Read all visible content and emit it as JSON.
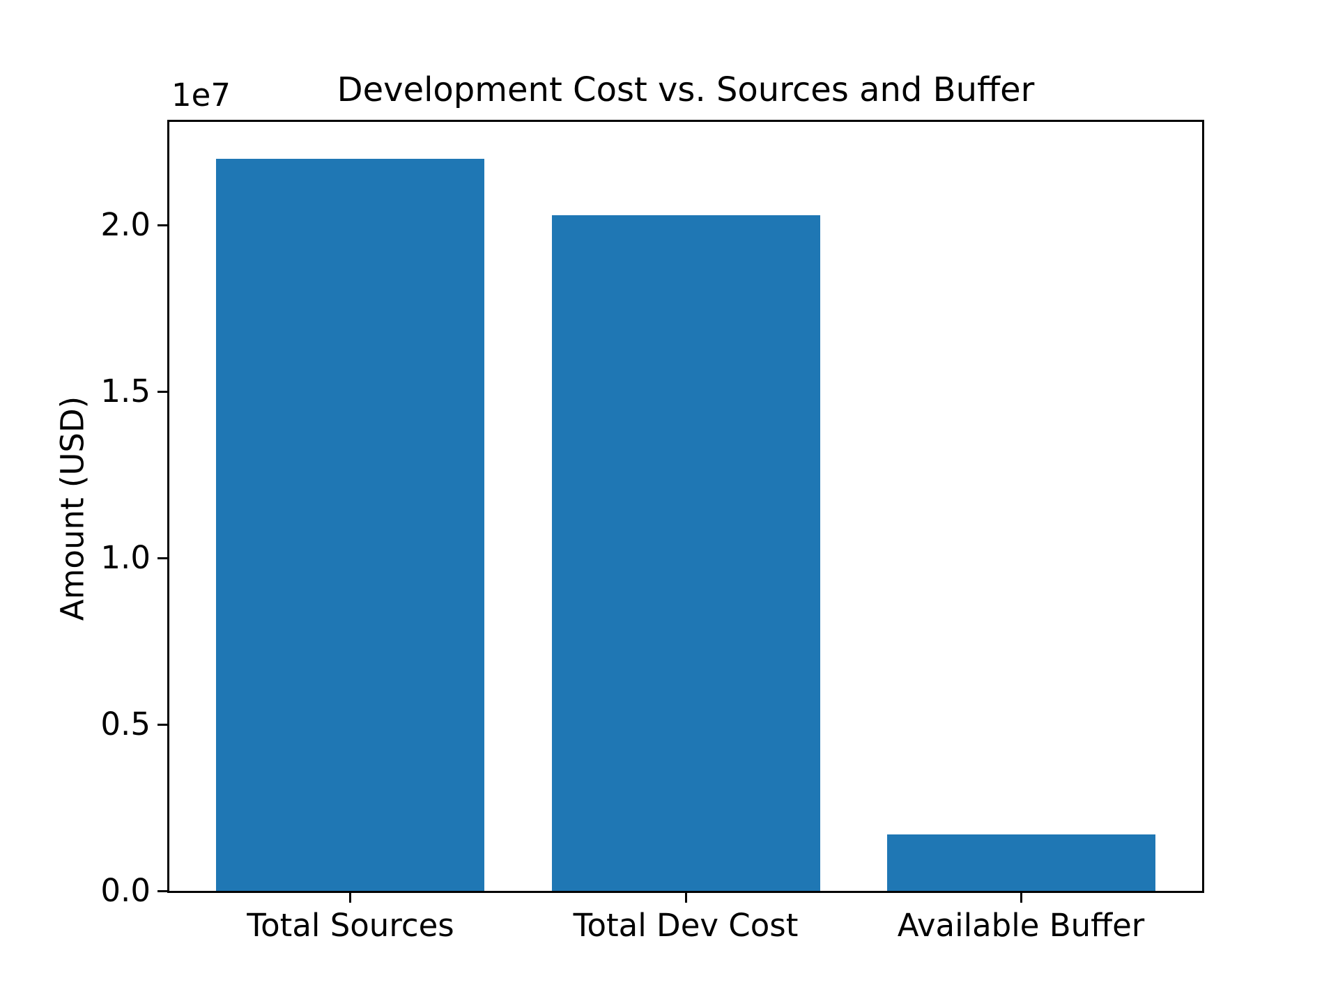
{
  "chart_data": {
    "type": "bar",
    "title": "Development Cost vs. Sources and Buffer",
    "ylabel": "Amount (USD)",
    "xlabel": "",
    "categories": [
      "Total Sources",
      "Total Dev Cost",
      "Available Buffer"
    ],
    "values": [
      22000000,
      20300000,
      1700000
    ],
    "ylim": [
      0,
      23100000
    ],
    "yticks": [
      0,
      5000000,
      10000000,
      15000000,
      20000000
    ],
    "ytick_labels": [
      "0.0",
      "0.5",
      "1.0",
      "1.5",
      "2.0"
    ],
    "offset_text": "1e7",
    "bar_color": "#1f77b4",
    "axis_color": "#000000",
    "text_color": "#000000",
    "background_color": "#ffffff",
    "grid": false,
    "legend_position": "none"
  }
}
